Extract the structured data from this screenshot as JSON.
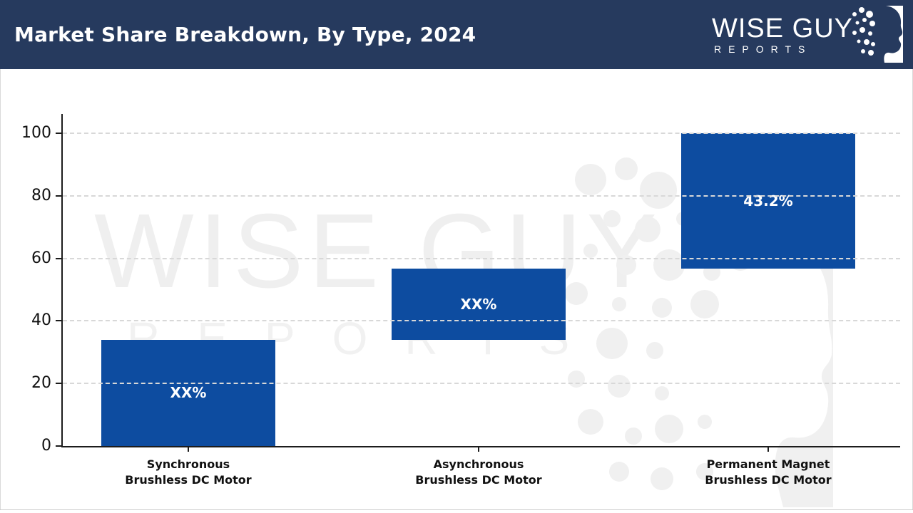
{
  "header": {
    "title": "Market Share Breakdown, By Type, 2024",
    "logo": {
      "line1": "WISE GUY",
      "line2": "REPORTS"
    }
  },
  "watermark": {
    "line1": "WISE GUY",
    "line2": "REPORTS"
  },
  "colors": {
    "header_bg": "#263a5e",
    "title_text": "#ffffff",
    "bar": "#0d4ca0",
    "bar_label": "#ffffff",
    "axis": "#1c1c1c",
    "grid": "#d8d8d8",
    "tick_text": "#111111",
    "watermark": "#efefef"
  },
  "chart_data": {
    "type": "bar",
    "variant": "stacked-waterfall",
    "title": "Market Share Breakdown, By Type, 2024",
    "xlabel": "",
    "ylabel": "",
    "ylim": [
      0,
      100
    ],
    "yticks": [
      0,
      20,
      40,
      60,
      80,
      100
    ],
    "grid": {
      "horizontal": true,
      "style": "dashed",
      "drawn_over_bars": true
    },
    "legend": "none",
    "bar_color": "#0d4ca0",
    "bar_label_color": "#ffffff",
    "categories": [
      "Synchronous Brushless DC Motor",
      "Asynchronous Brushless DC Motor",
      "Permanent Magnet Brushless DC Motor"
    ],
    "categories_lines": [
      {
        "line1": "Synchronous",
        "line2": "Brushless DC Motor"
      },
      {
        "line1": "Asynchronous",
        "line2": "Brushless DC Motor"
      },
      {
        "line1": "Permanent Magnet",
        "line2": "Brushless DC Motor"
      }
    ],
    "segments": [
      {
        "start": 0,
        "end": 34,
        "value_est": 34,
        "label": "XX%"
      },
      {
        "start": 34,
        "end": 56.8,
        "value_est": 22.8,
        "label": "XX%"
      },
      {
        "start": 56.8,
        "end": 100,
        "value_est": 43.2,
        "label": "43.2%"
      }
    ],
    "values_shown": [
      "XX%",
      "XX%",
      "43.2%"
    ]
  }
}
